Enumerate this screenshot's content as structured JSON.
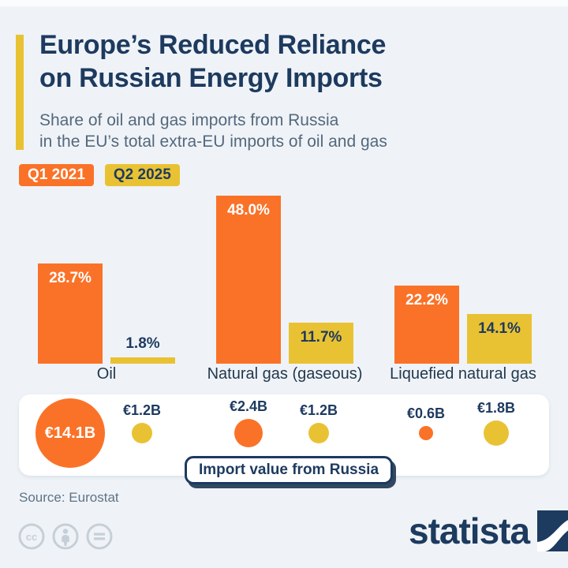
{
  "header": {
    "title_line1": "Europe’s Reduced Reliance",
    "title_line2": "on Russian Energy Imports",
    "subtitle_line1": "Share of oil and gas imports from Russia",
    "subtitle_line2": "in the EU’s total extra-EU imports of oil and gas",
    "legend": [
      {
        "label": "Q1 2021",
        "color": "#fa7228",
        "text_color": "#ffffff"
      },
      {
        "label": "Q2 2025",
        "color": "#e9c233",
        "text_color": "#1d3a5f"
      }
    ]
  },
  "chart_data": {
    "type": "bar",
    "categories": [
      "Oil",
      "Natural gas (gaseous)",
      "Liquefied natural gas"
    ],
    "series": [
      {
        "name": "Q1 2021",
        "color": "#fa7228",
        "values": [
          28.7,
          48.0,
          22.2
        ],
        "labels": [
          "28.7%",
          "48.0%",
          "22.2%"
        ],
        "on_bar_label_color": "#ffffff"
      },
      {
        "name": "Q2 2025",
        "color": "#e9c233",
        "values": [
          1.8,
          11.7,
          14.1
        ],
        "labels": [
          "1.8%",
          "11.7%",
          "14.1%"
        ],
        "on_bar_label_color": "#1d3a5f"
      }
    ],
    "unit": "%",
    "ylim": [
      0,
      48
    ],
    "grid": false,
    "legend_position": "top-left",
    "value_labels_shown": true
  },
  "bubble_chart": {
    "type": "bubble",
    "caption": "Import value from Russia",
    "unit": "billion EUR",
    "items": [
      {
        "category": "Oil",
        "series": "Q1 2021",
        "label": "€14.1B",
        "value": 14.1,
        "color": "#fa7228",
        "label_placement": "inside"
      },
      {
        "category": "Oil",
        "series": "Q2 2025",
        "label": "€1.2B",
        "value": 1.2,
        "color": "#e9c233",
        "label_placement": "above"
      },
      {
        "category": "Natural gas (gaseous)",
        "series": "Q1 2021",
        "label": "€2.4B",
        "value": 2.4,
        "color": "#fa7228",
        "label_placement": "above"
      },
      {
        "category": "Natural gas (gaseous)",
        "series": "Q2 2025",
        "label": "€1.2B",
        "value": 1.2,
        "color": "#e9c233",
        "label_placement": "above"
      },
      {
        "category": "Liquefied natural gas",
        "series": "Q1 2021",
        "label": "€0.6B",
        "value": 0.6,
        "color": "#fa7228",
        "label_placement": "above"
      },
      {
        "category": "Liquefied natural gas",
        "series": "Q2 2025",
        "label": "€1.8B",
        "value": 1.8,
        "color": "#e9c233",
        "label_placement": "above"
      }
    ]
  },
  "footer": {
    "source": "Source: Eurostat",
    "license_icons": [
      "cc-icon",
      "attribution-icon",
      "no-derivatives-icon"
    ],
    "brand": "statista"
  },
  "colors": {
    "background": "#eff3f7",
    "navy": "#1d3a5f",
    "orange": "#fa7228",
    "yellow": "#e9c233",
    "subtitle_gray": "#54687d",
    "source_gray": "#5f7386",
    "license_gray": "#c6cfd8",
    "panel_white": "#ffffff"
  }
}
